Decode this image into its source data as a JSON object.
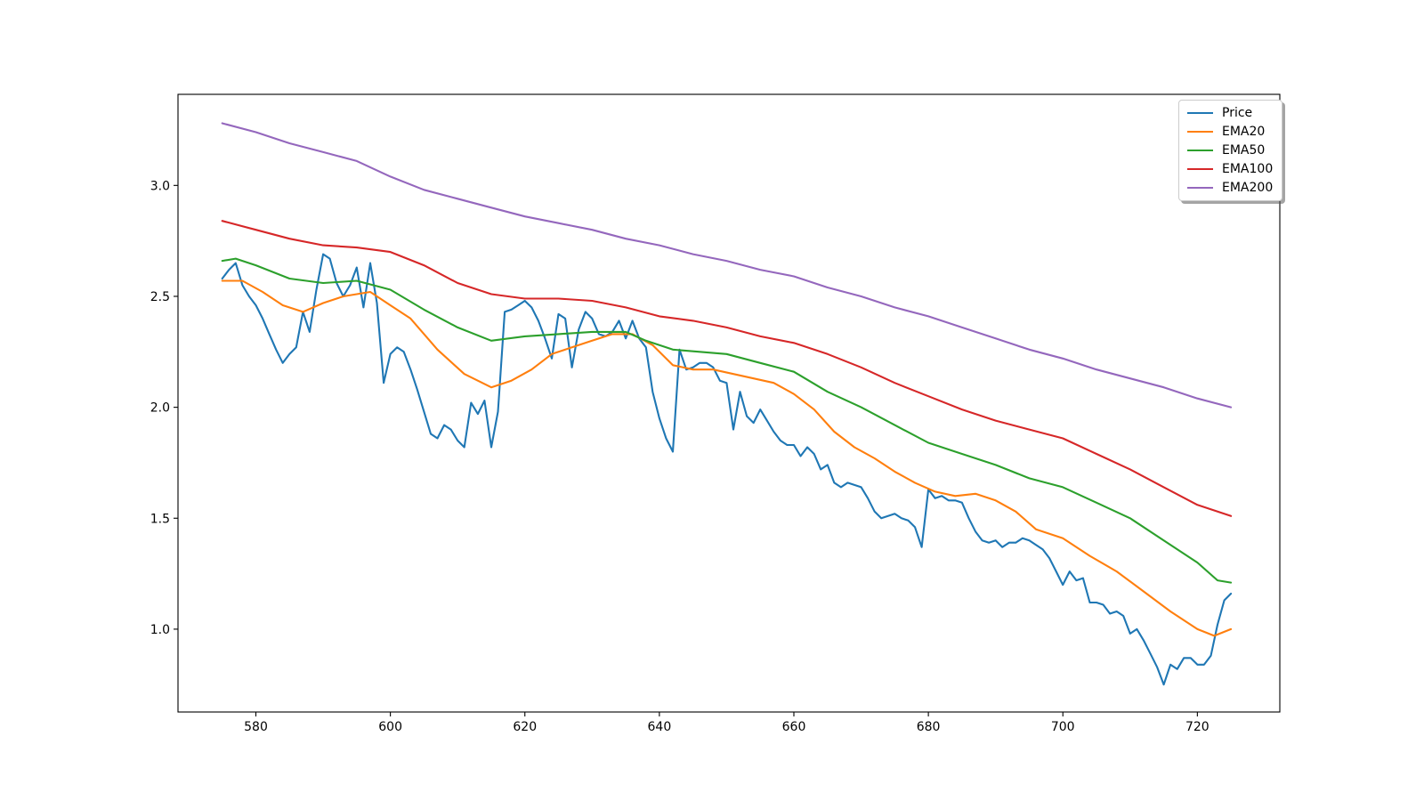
{
  "figure": {
    "background": "#ffffff"
  },
  "chart_data": {
    "type": "line",
    "title": "",
    "xlabel": "",
    "ylabel": "",
    "grid": false,
    "legend_position": "upper right",
    "legend_entries": [
      "Price",
      "EMA20",
      "EMA50",
      "EMA100",
      "EMA200"
    ],
    "xlim": [
      568.42,
      732.26
    ],
    "ylim": [
      0.6266,
      3.4105
    ],
    "xticks": [
      580,
      600,
      620,
      640,
      660,
      680,
      700,
      720
    ],
    "xtick_labels": [
      "580",
      "600",
      "620",
      "640",
      "660",
      "680",
      "700",
      "720"
    ],
    "yticks": [
      1.0,
      1.5,
      2.0,
      2.5,
      3.0
    ],
    "ytick_labels": [
      "1.0",
      "1.5",
      "2.0",
      "2.5",
      "3.0"
    ],
    "series": [
      {
        "name": "Price",
        "color": "#1f77b4",
        "x0": 575,
        "dx": 1,
        "y": [
          2.58,
          2.62,
          2.65,
          2.55,
          2.5,
          2.46,
          2.4,
          2.33,
          2.26,
          2.2,
          2.24,
          2.27,
          2.43,
          2.34,
          2.53,
          2.69,
          2.67,
          2.56,
          2.5,
          2.55,
          2.63,
          2.45,
          2.65,
          2.47,
          2.11,
          2.24,
          2.27,
          2.25,
          2.17,
          2.08,
          1.98,
          1.88,
          1.86,
          1.92,
          1.9,
          1.85,
          1.82,
          2.02,
          1.97,
          2.03,
          1.82,
          1.98,
          2.43,
          2.44,
          2.46,
          2.48,
          2.45,
          2.39,
          2.31,
          2.22,
          2.42,
          2.4,
          2.18,
          2.35,
          2.43,
          2.4,
          2.33,
          2.32,
          2.34,
          2.39,
          2.31,
          2.39,
          2.31,
          2.27,
          2.07,
          1.95,
          1.86,
          1.8,
          2.26,
          2.17,
          2.18,
          2.2,
          2.2,
          2.18,
          2.12,
          2.11,
          1.9,
          2.07,
          1.96,
          1.93,
          1.99,
          1.94,
          1.89,
          1.85,
          1.83,
          1.83,
          1.78,
          1.82,
          1.79,
          1.72,
          1.74,
          1.66,
          1.64,
          1.66,
          1.65,
          1.64,
          1.59,
          1.53,
          1.5,
          1.51,
          1.52,
          1.5,
          1.49,
          1.46,
          1.37,
          1.63,
          1.59,
          1.6,
          1.58,
          1.58,
          1.57,
          1.5,
          1.44,
          1.4,
          1.39,
          1.4,
          1.37,
          1.39,
          1.39,
          1.41,
          1.4,
          1.38,
          1.36,
          1.32,
          1.26,
          1.2,
          1.26,
          1.22,
          1.23,
          1.12,
          1.12,
          1.11,
          1.07,
          1.08,
          1.06,
          0.98,
          1.0,
          0.95,
          0.89,
          0.83,
          0.75,
          0.84,
          0.82,
          0.87,
          0.87,
          0.84,
          0.84,
          0.88,
          1.02,
          1.13,
          1.16
        ]
      },
      {
        "name": "EMA20",
        "color": "#ff7f0e",
        "x": [
          575,
          578,
          581,
          584,
          587,
          590,
          593,
          597,
          600,
          603,
          607,
          611,
          615,
          618,
          621,
          624,
          627,
          630,
          633,
          636,
          639,
          642,
          645,
          648,
          651,
          654,
          657,
          660,
          663,
          666,
          669,
          672,
          675,
          678,
          681,
          684,
          687,
          690,
          693,
          696,
          700,
          704,
          708,
          712,
          716,
          720,
          722.5,
          725
        ],
        "y": [
          2.57,
          2.57,
          2.52,
          2.46,
          2.43,
          2.47,
          2.5,
          2.52,
          2.46,
          2.4,
          2.26,
          2.15,
          2.09,
          2.12,
          2.17,
          2.24,
          2.27,
          2.3,
          2.33,
          2.33,
          2.28,
          2.19,
          2.17,
          2.17,
          2.15,
          2.13,
          2.11,
          2.06,
          1.99,
          1.89,
          1.82,
          1.77,
          1.71,
          1.66,
          1.62,
          1.6,
          1.61,
          1.58,
          1.53,
          1.45,
          1.41,
          1.33,
          1.26,
          1.17,
          1.08,
          1.0,
          0.97,
          1.0
        ]
      },
      {
        "name": "EMA50",
        "color": "#2ca02c",
        "x": [
          575,
          577,
          580,
          585,
          590,
          595,
          600,
          605,
          610,
          615,
          620,
          625,
          630,
          635,
          638,
          642,
          646,
          650,
          655,
          660,
          665,
          670,
          675,
          680,
          685,
          690,
          695,
          700,
          705,
          710,
          715,
          720,
          723,
          725
        ],
        "y": [
          2.66,
          2.67,
          2.64,
          2.58,
          2.56,
          2.57,
          2.53,
          2.44,
          2.36,
          2.3,
          2.32,
          2.33,
          2.34,
          2.34,
          2.3,
          2.26,
          2.25,
          2.24,
          2.2,
          2.16,
          2.07,
          2.0,
          1.92,
          1.84,
          1.79,
          1.74,
          1.68,
          1.64,
          1.57,
          1.5,
          1.4,
          1.3,
          1.22,
          1.21
        ]
      },
      {
        "name": "EMA100",
        "color": "#d62728",
        "x": [
          575,
          580,
          585,
          590,
          595,
          600,
          605,
          610,
          615,
          620,
          625,
          630,
          635,
          640,
          645,
          650,
          655,
          660,
          665,
          670,
          675,
          680,
          685,
          690,
          695,
          700,
          705,
          710,
          715,
          720,
          725
        ],
        "y": [
          2.84,
          2.8,
          2.76,
          2.73,
          2.72,
          2.7,
          2.64,
          2.56,
          2.51,
          2.49,
          2.49,
          2.48,
          2.45,
          2.41,
          2.39,
          2.36,
          2.32,
          2.29,
          2.24,
          2.18,
          2.11,
          2.05,
          1.99,
          1.94,
          1.9,
          1.86,
          1.79,
          1.72,
          1.64,
          1.56,
          1.51
        ]
      },
      {
        "name": "EMA200",
        "color": "#9467bd",
        "x": [
          575,
          580,
          585,
          590,
          595,
          600,
          605,
          610,
          615,
          620,
          625,
          630,
          635,
          640,
          645,
          650,
          655,
          660,
          665,
          670,
          675,
          680,
          685,
          690,
          695,
          700,
          705,
          710,
          715,
          720,
          725
        ],
        "y": [
          3.28,
          3.24,
          3.19,
          3.15,
          3.11,
          3.04,
          2.98,
          2.94,
          2.9,
          2.86,
          2.83,
          2.8,
          2.76,
          2.73,
          2.69,
          2.66,
          2.62,
          2.59,
          2.54,
          2.5,
          2.45,
          2.41,
          2.36,
          2.31,
          2.26,
          2.22,
          2.17,
          2.13,
          2.09,
          2.04,
          2.0
        ]
      }
    ]
  }
}
